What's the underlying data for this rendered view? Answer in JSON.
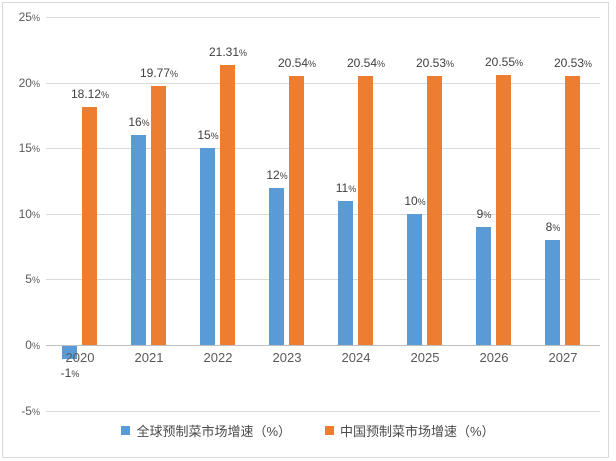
{
  "chart_data": {
    "type": "bar",
    "title": "",
    "categories": [
      "2020",
      "2021",
      "2022",
      "2023",
      "2024",
      "2025",
      "2026",
      "2027"
    ],
    "series": [
      {
        "name": "全球预制菜市场增速（%）",
        "key": "global",
        "color": "#5b9bd5",
        "values": [
          -1,
          16,
          15,
          12,
          11,
          10,
          9,
          8
        ],
        "labels": [
          "-1%",
          "16%",
          "15%",
          "12%",
          "11%",
          "10%",
          "9%",
          "8%"
        ]
      },
      {
        "name": "中国预制菜市场增速（%）",
        "key": "china",
        "color": "#ed7d31",
        "values": [
          18.12,
          19.77,
          21.31,
          20.54,
          20.54,
          20.53,
          20.55,
          20.53
        ],
        "labels": [
          "18.12%",
          "19.77%",
          "21.31%",
          "20.54%",
          "20.54%",
          "20.53%",
          "20.55%",
          "20.53%"
        ]
      }
    ],
    "y_axis": {
      "min": -5,
      "max": 25,
      "step": 5,
      "tick_labels": [
        "25%",
        "20%",
        "15%",
        "10%",
        "5%",
        "0%",
        "-5%"
      ]
    },
    "x_axis_label": "",
    "y_axis_label": "",
    "grid": true,
    "legend_position": "bottom"
  },
  "colors": {
    "gridline": "#d9d9d9",
    "zero_line": "#bfbfbf",
    "tick_text": "#595959",
    "label_text": "#404040",
    "frame_border": "#d9d9d9",
    "background": "#ffffff"
  }
}
